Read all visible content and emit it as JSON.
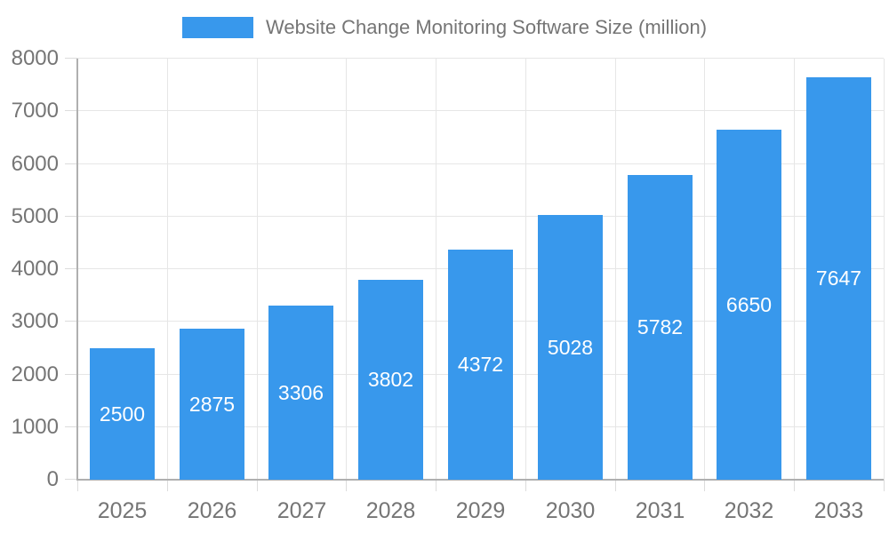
{
  "chart_data": {
    "type": "bar",
    "title": "Website Change Monitoring Software Size (million)",
    "categories": [
      "2025",
      "2026",
      "2027",
      "2028",
      "2029",
      "2030",
      "2031",
      "2032",
      "2033"
    ],
    "values": [
      2500,
      2875,
      3306,
      3802,
      4372,
      5028,
      5782,
      6650,
      7647
    ],
    "bar_value_labels": [
      "2500",
      "2875",
      "3306",
      "3802",
      "4372",
      "5028",
      "5782",
      "6650",
      "7647"
    ],
    "xlabel": "",
    "ylabel": "",
    "ylim": [
      0,
      8000
    ],
    "ytick_step": 1000,
    "ytick_labels": [
      "0",
      "1000",
      "2000",
      "3000",
      "4000",
      "5000",
      "6000",
      "7000",
      "8000"
    ],
    "grid": "on",
    "legend_position": "top",
    "colors": {
      "bar": "#3898EC",
      "bar_label_text": "#FFFFFF",
      "axis_text": "#757575",
      "legend_text": "#757575",
      "gridline": "#E6E6E6",
      "tick": "#DCDCDC",
      "axis_line": "#B0B0B0",
      "background": "#FFFFFF"
    }
  }
}
